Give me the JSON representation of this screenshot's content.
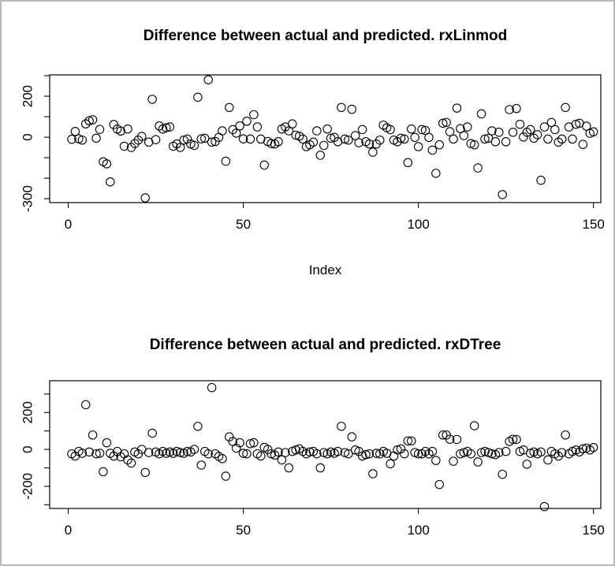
{
  "frame": {
    "background": "#ffffff",
    "border_color": "#b9b9b9",
    "text_color": "#000000"
  },
  "chart_data": [
    {
      "type": "scatter",
      "title": "Difference between actual and predicted. rxLinmod",
      "xlabel": "Index",
      "ylabel": "",
      "point_style": "open-circle",
      "grid": false,
      "legend": false,
      "xlim": [
        -5.3,
        152.1
      ],
      "ylim": [
        -319,
        304
      ],
      "x_ticks": [
        {
          "value": 0,
          "label": "0"
        },
        {
          "value": 50,
          "label": "50"
        },
        {
          "value": 100,
          "label": "100"
        },
        {
          "value": 150,
          "label": "150"
        }
      ],
      "y_ticks": [
        300,
        200,
        100,
        0,
        -100,
        -200,
        -300
      ],
      "y_tick_labels": [
        {
          "value": 200,
          "label": "200"
        },
        {
          "value": 0,
          "label": "0"
        },
        {
          "value": -300,
          "label": "-300"
        }
      ],
      "x_is_index_from": 1,
      "values": [
        -10,
        28,
        -8,
        -14,
        65,
        80,
        85,
        -5,
        38,
        -120,
        -130,
        -218,
        62,
        40,
        30,
        -44,
        40,
        -50,
        -31,
        -14,
        4,
        -296,
        -24,
        185,
        -12,
        55,
        40,
        46,
        50,
        -44,
        -33,
        -50,
        -14,
        -9,
        -33,
        -40,
        195,
        -8,
        -5,
        280,
        -24,
        -21,
        -1,
        31,
        -117,
        145,
        37,
        20,
        55,
        -8,
        78,
        -9,
        110,
        50,
        -9,
        -136,
        -21,
        -31,
        -33,
        -22,
        40,
        50,
        31,
        65,
        10,
        5,
        -9,
        -46,
        -37,
        -24,
        31,
        -88,
        -40,
        40,
        -5,
        -1,
        -22,
        145,
        -9,
        -14,
        136,
        8,
        -27,
        37,
        -22,
        -33,
        -73,
        -33,
        -14,
        59,
        46,
        37,
        -14,
        -22,
        -5,
        -9,
        -124,
        40,
        -1,
        -46,
        37,
        33,
        -1,
        -63,
        -176,
        -37,
        68,
        72,
        27,
        -9,
        142,
        42,
        8,
        50,
        -31,
        -37,
        -150,
        114,
        -9,
        -5,
        31,
        -22,
        24,
        -280,
        -22,
        135,
        24,
        140,
        63,
        1,
        24,
        37,
        -5,
        12,
        -210,
        50,
        -9,
        72,
        37,
        -24,
        -9,
        145,
        50,
        -9,
        63,
        68,
        -35,
        54,
        19,
        26
      ]
    },
    {
      "type": "scatter",
      "title": "Difference between actual and predicted. rxDTree",
      "xlabel": "",
      "ylabel": "",
      "point_style": "open-circle",
      "grid": false,
      "legend": false,
      "xlim": [
        -5.3,
        152.1
      ],
      "ylim": [
        -320,
        372
      ],
      "x_ticks": [
        {
          "value": 0,
          "label": "0"
        },
        {
          "value": 50,
          "label": "50"
        },
        {
          "value": 100,
          "label": "100"
        },
        {
          "value": 150,
          "label": "150"
        }
      ],
      "y_ticks": [
        300,
        200,
        100,
        0,
        -100,
        -200,
        -300
      ],
      "y_tick_labels": [
        {
          "value": 200,
          "label": "200"
        },
        {
          "value": 0,
          "label": "0"
        },
        {
          "value": -200,
          "label": "-200"
        }
      ],
      "x_is_index_from": 1,
      "values": [
        -24,
        -36,
        -11,
        -21,
        242,
        -14,
        78,
        -24,
        -21,
        -121,
        36,
        -21,
        -36,
        -11,
        -40,
        -24,
        -57,
        -74,
        -14,
        -24,
        0,
        -125,
        -17,
        88,
        -14,
        -24,
        -11,
        -21,
        -14,
        -21,
        -11,
        -17,
        -21,
        -11,
        -14,
        0,
        125,
        -85,
        -11,
        -24,
        335,
        -24,
        -38,
        -50,
        -145,
        68,
        43,
        7,
        36,
        -21,
        -24,
        31,
        36,
        -24,
        -36,
        11,
        0,
        -24,
        -31,
        -14,
        -57,
        -17,
        -100,
        -11,
        -3,
        3,
        -11,
        -24,
        -14,
        -11,
        -24,
        -100,
        -17,
        -24,
        -14,
        -21,
        -11,
        125,
        -17,
        -24,
        68,
        -3,
        -11,
        -36,
        -28,
        -24,
        -132,
        -21,
        -24,
        -11,
        -21,
        -78,
        -36,
        -3,
        3,
        -24,
        46,
        46,
        -17,
        -24,
        -24,
        -11,
        -24,
        -11,
        -60,
        -190,
        78,
        78,
        55,
        -64,
        54,
        -24,
        -17,
        -11,
        -24,
        128,
        -68,
        -17,
        -11,
        -17,
        -24,
        -28,
        -17,
        -135,
        -11,
        43,
        55,
        54,
        -11,
        -3,
        -80,
        -21,
        -14,
        -24,
        -14,
        -310,
        -57,
        -11,
        -24,
        -36,
        -17,
        78,
        -24,
        -11,
        -3,
        -14,
        3,
        7,
        -3,
        10
      ]
    }
  ]
}
